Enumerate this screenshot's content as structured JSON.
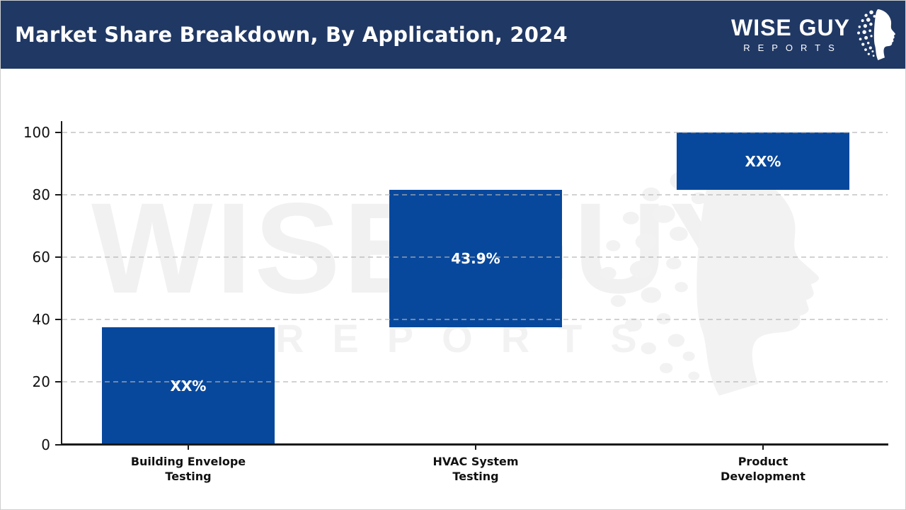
{
  "header": {
    "title": "Market Share Breakdown, By Application, 2024",
    "bg_color": "#203864",
    "logo": {
      "name": "Wise Guy Reports",
      "line1": "WISE GUY",
      "line2": "REPORTS"
    }
  },
  "watermark": {
    "line1": "WISE GUY",
    "line2": "REPORTS"
  },
  "chart_data": {
    "type": "bar",
    "subtype": "waterfall",
    "title": "Market Share Breakdown, By Application, 2024",
    "categories": [
      "Building Envelope Testing",
      "HVAC System Testing",
      "Product Development"
    ],
    "category_lines": [
      [
        "Building Envelope",
        "Testing"
      ],
      [
        "HVAC System",
        "Testing"
      ],
      [
        "Product",
        "Development"
      ]
    ],
    "bars": [
      {
        "label": "XX%",
        "start": 0,
        "end": 37.6
      },
      {
        "label": "43.9%",
        "start": 37.6,
        "end": 81.5
      },
      {
        "label": "XX%",
        "start": 81.5,
        "end": 100
      }
    ],
    "xlabel": "",
    "ylabel": "",
    "ylim": [
      0,
      100
    ],
    "yticks": [
      0,
      20,
      40,
      60,
      80,
      100
    ],
    "grid": true,
    "grid_axis": "y",
    "grid_style": "dashed",
    "legend": "none",
    "bar_color": "#08489c",
    "bar_label_color": "#ffffff",
    "axis_color": "#1a1a1a"
  }
}
